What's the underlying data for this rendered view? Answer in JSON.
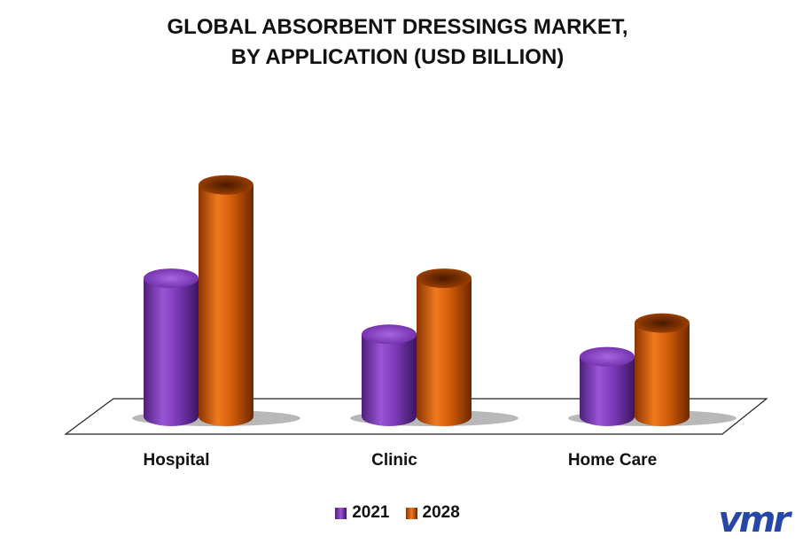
{
  "title_lines": [
    "GLOBAL ABSORBENT DRESSINGS MARKET,",
    "BY APPLICATION (USD BILLION)"
  ],
  "logo_text": "vmr",
  "colors": {
    "series_2021": "#7d3ab8",
    "series_2028": "#d45d0a"
  },
  "chart_data": {
    "type": "bar",
    "title": "GLOBAL ABSORBENT DRESSINGS MARKET, BY APPLICATION (USD BILLION)",
    "categories": [
      "Hospital",
      "Clinic",
      "Home Care"
    ],
    "series": [
      {
        "name": "2021",
        "values": [
          3.7,
          2.2,
          1.6
        ]
      },
      {
        "name": "2028",
        "values": [
          6.2,
          3.7,
          2.5
        ]
      }
    ],
    "ylim": [
      0,
      7
    ],
    "grid": false,
    "legend": "bottom"
  }
}
